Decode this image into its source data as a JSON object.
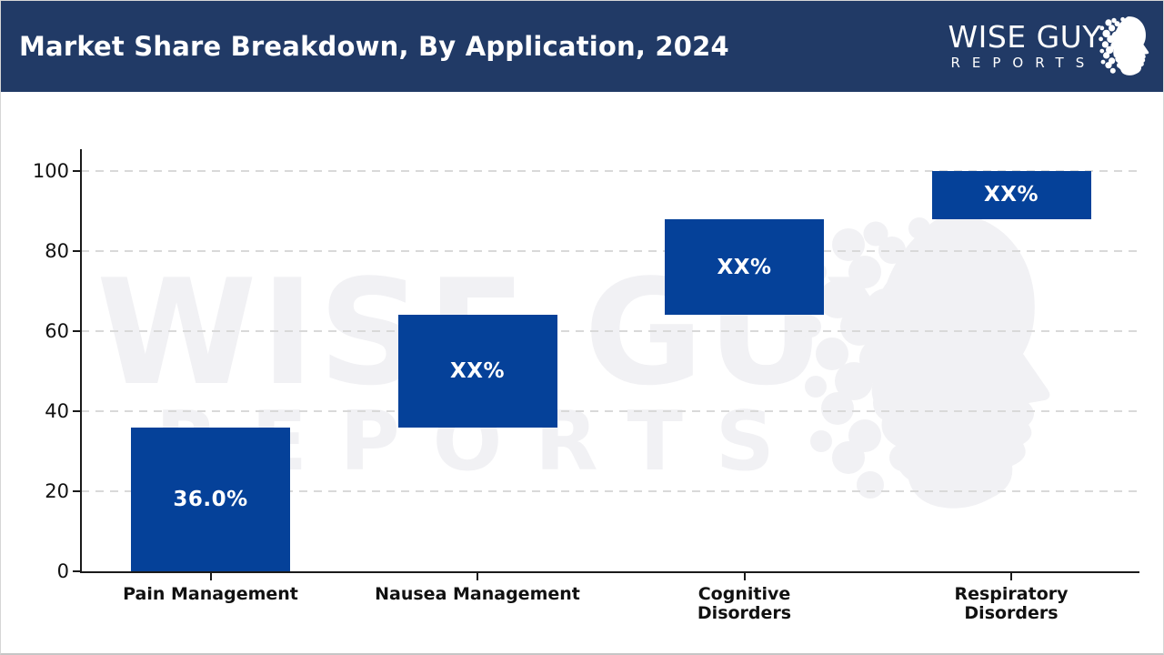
{
  "header": {
    "title": "Market Share Breakdown, By Application, 2024"
  },
  "logo": {
    "line1": "WISE GUY",
    "line2": "REPORTS"
  },
  "watermark": {
    "line1": "WISE GUY",
    "line2": "REPORTS"
  },
  "colors": {
    "header_bg": "#213a66",
    "bar": "#054199",
    "grid": "#d9d9d9",
    "axis": "#1a1a1a",
    "watermark": "#f1f1f4",
    "label_on_bar": "#ffffff"
  },
  "chart_data": {
    "type": "bar",
    "subtype": "waterfall",
    "title": "Market Share Breakdown, By Application, 2024",
    "categories": [
      "Pain Management",
      "Nausea Management",
      "Cognitive\nDisorders",
      "Respiratory\nDisorders"
    ],
    "segments": [
      {
        "category": "Pain Management",
        "start": 0,
        "end": 36,
        "label": "36.0%"
      },
      {
        "category": "Nausea Management",
        "start": 36,
        "end": 64,
        "label": "XX%"
      },
      {
        "category": "Cognitive Disorders",
        "start": 64,
        "end": 88,
        "label": "XX%"
      },
      {
        "category": "Respiratory Disorders",
        "start": 88,
        "end": 100,
        "label": "XX%"
      }
    ],
    "ylim": [
      0,
      100
    ],
    "yticks": [
      0,
      20,
      40,
      60,
      80,
      100
    ],
    "xlabel": "",
    "ylabel": "",
    "grid": "horizontal-dashed",
    "legend": "none"
  }
}
